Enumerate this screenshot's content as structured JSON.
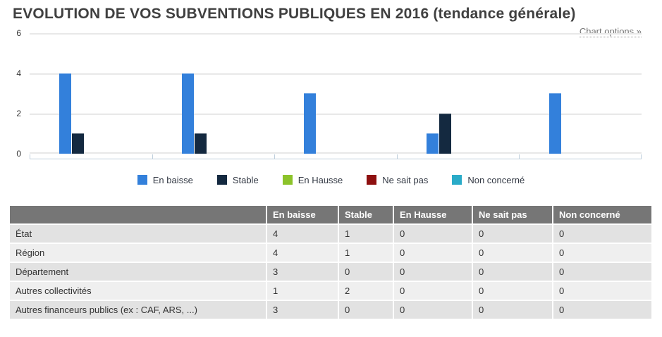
{
  "title": "EVOLUTION DE VOS SUBVENTIONS PUBLIQUES EN 2016 (tendance générale)",
  "chart_options_label": "Chart options »",
  "chart_data": {
    "type": "bar",
    "title": "EVOLUTION DE VOS SUBVENTIONS PUBLIQUES EN 2016 (tendance générale)",
    "categories": [
      "État",
      "Région",
      "Département",
      "Autres collectivités",
      "Autres financeurs publics (ex : CAF, ARS, ...)"
    ],
    "series": [
      {
        "name": "En baisse",
        "color": "#3380DB",
        "values": [
          4,
          4,
          3,
          1,
          3
        ]
      },
      {
        "name": "Stable",
        "color": "#142940",
        "values": [
          1,
          1,
          0,
          2,
          0
        ]
      },
      {
        "name": "En Hausse",
        "color": "#8CC32A",
        "values": [
          0,
          0,
          0,
          0,
          0
        ]
      },
      {
        "name": "Ne sait pas",
        "color": "#8E1010",
        "values": [
          0,
          0,
          0,
          0,
          0
        ]
      },
      {
        "name": "Non concerné",
        "color": "#2AABC8",
        "values": [
          0,
          0,
          0,
          0,
          0
        ]
      }
    ],
    "ylim": [
      0,
      6
    ],
    "yticks": [
      0,
      2,
      4,
      6
    ],
    "grid": true,
    "legend_position": "bottom",
    "x_axis_labels_visible": false
  },
  "table": {
    "columns": [
      "",
      "En baisse",
      "Stable",
      "En Hausse",
      "Ne sait pas",
      "Non concerné"
    ],
    "rows": [
      {
        "label": "État",
        "values": [
          "4",
          "1",
          "0",
          "0",
          "0"
        ]
      },
      {
        "label": "Région",
        "values": [
          "4",
          "1",
          "0",
          "0",
          "0"
        ]
      },
      {
        "label": "Département",
        "values": [
          "3",
          "0",
          "0",
          "0",
          "0"
        ]
      },
      {
        "label": "Autres collectivités",
        "values": [
          "1",
          "2",
          "0",
          "0",
          "0"
        ]
      },
      {
        "label": "Autres financeurs publics (ex : CAF, ARS, ...)",
        "values": [
          "3",
          "0",
          "0",
          "0",
          "0"
        ]
      }
    ]
  }
}
